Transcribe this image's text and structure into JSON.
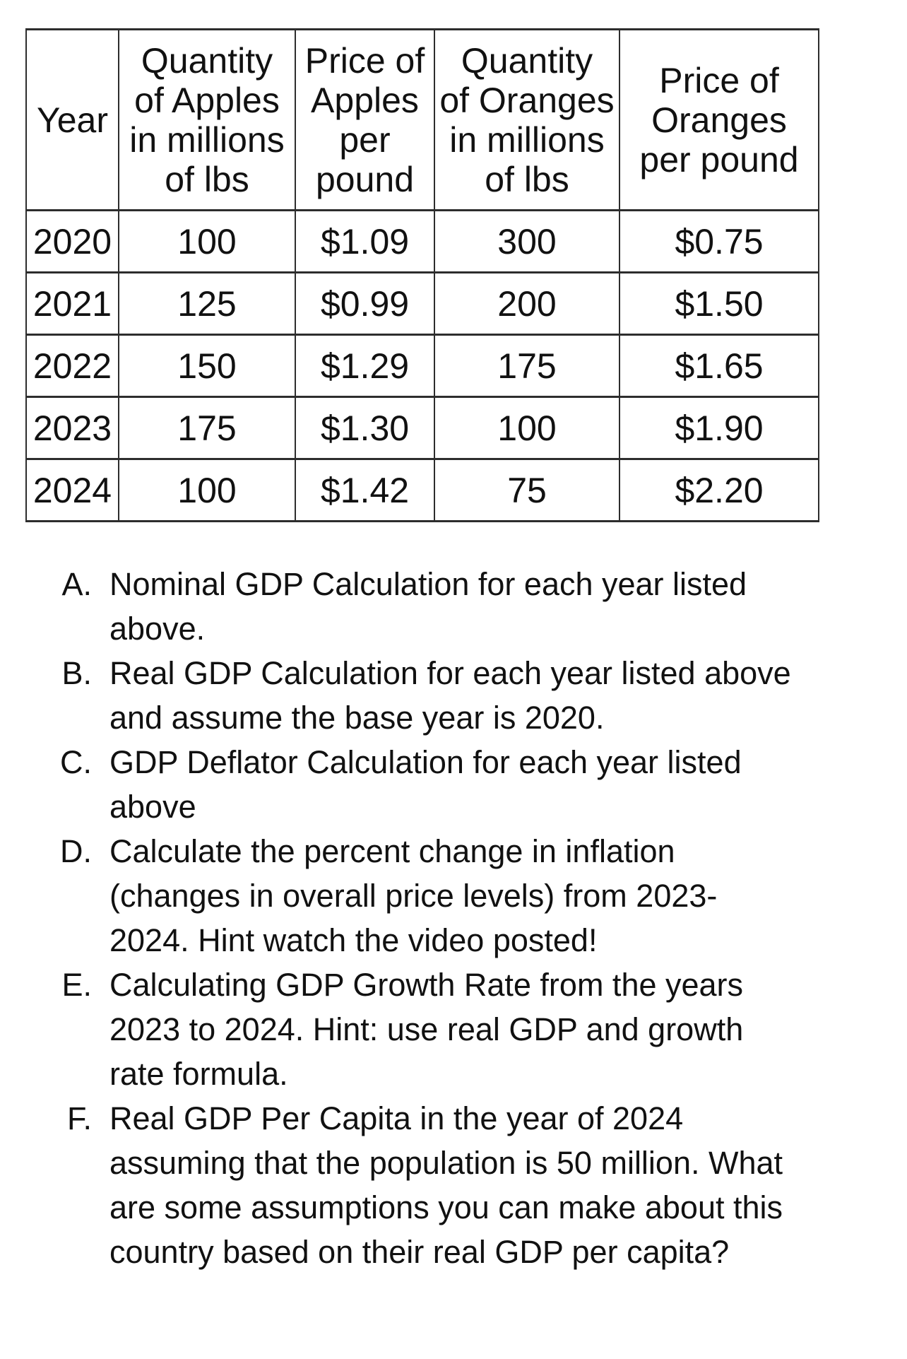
{
  "colors": {
    "background": "#ffffff",
    "text": "#111111",
    "table_border": "#2d2d2d"
  },
  "table": {
    "columns": [
      "Year",
      "Quantity\nof Apples\nin millions\nof lbs",
      "Price of\nApples\nper\npound",
      "Quantity\nof Oranges\nin millions\nof lbs",
      "Price of\nOranges\nper pound"
    ],
    "rows": [
      {
        "year": "2020",
        "qty_apples": "100",
        "price_apples": "$1.09",
        "qty_oranges": "300",
        "price_oranges": "$0.75"
      },
      {
        "year": "2021",
        "qty_apples": "125",
        "price_apples": "$0.99",
        "qty_oranges": "200",
        "price_oranges": "$1.50"
      },
      {
        "year": "2022",
        "qty_apples": "150",
        "price_apples": "$1.29",
        "qty_oranges": "175",
        "price_oranges": "$1.65"
      },
      {
        "year": "2023",
        "qty_apples": "175",
        "price_apples": "$1.30",
        "qty_oranges": "100",
        "price_oranges": "$1.90"
      },
      {
        "year": "2024",
        "qty_apples": "100",
        "price_apples": "$1.42",
        "qty_oranges": "75",
        "price_oranges": "$2.20"
      }
    ]
  },
  "questions": [
    {
      "label": "A.",
      "text": "Nominal GDP Calculation for each year listed\nabove."
    },
    {
      "label": "B.",
      "text": "Real GDP Calculation for each year listed above\nand assume the base year is 2020."
    },
    {
      "label": "C.",
      "text": "GDP Deflator Calculation for each year listed\nabove"
    },
    {
      "label": "D.",
      "text": "Calculate the percent change in inflation\n(changes in overall price levels) from 2023-\n2024. Hint watch the video posted!"
    },
    {
      "label": "E.",
      "text": "Calculating GDP Growth Rate from the years\n2023 to 2024. Hint: use real GDP and growth\nrate formula."
    },
    {
      "label": "F.",
      "text": "Real GDP Per Capita in the year of 2024\nassuming that the population is 50 million. What\nare some assumptions you can make about this\ncountry based on their real GDP per capita?"
    }
  ]
}
